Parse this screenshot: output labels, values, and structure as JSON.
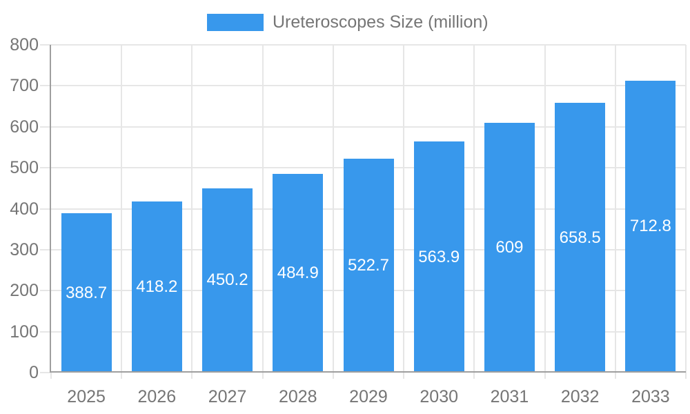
{
  "legend": {
    "label": "Ureteroscopes Size (million)"
  },
  "colors": {
    "bar": "#3898ec",
    "grid": "#e6e6e6",
    "axis": "#9e9e9e",
    "text": "#757575",
    "bar_label": "#ffffff",
    "background": "#ffffff"
  },
  "chart_data": {
    "type": "bar",
    "title": "Ureteroscopes Size (million)",
    "categories": [
      "2025",
      "2026",
      "2027",
      "2028",
      "2029",
      "2030",
      "2031",
      "2032",
      "2033"
    ],
    "values": [
      388.7,
      418.2,
      450.2,
      484.9,
      522.7,
      563.9,
      609,
      658.5,
      712.8
    ],
    "value_labels": [
      "388.7",
      "418.2",
      "450.2",
      "484.9",
      "522.7",
      "563.9",
      "609",
      "658.5",
      "712.8"
    ],
    "series_name": "Ureteroscopes Size (million)",
    "xlabel": "",
    "ylabel": "",
    "ylim": [
      0,
      800
    ],
    "yticks": [
      0,
      100,
      200,
      300,
      400,
      500,
      600,
      700,
      800
    ],
    "grid": true,
    "legend_position": "top",
    "bar_label_position": "center",
    "bar_label_color": "#ffffff"
  }
}
